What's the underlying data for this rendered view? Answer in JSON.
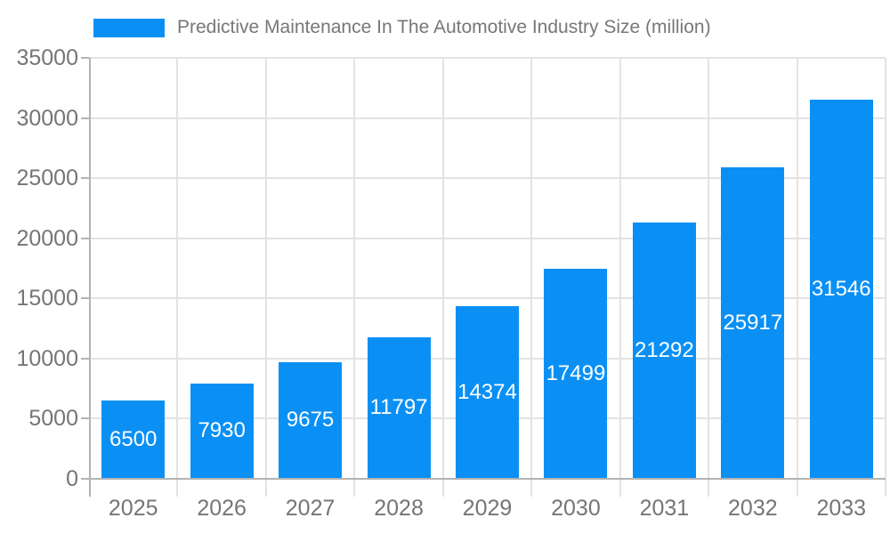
{
  "chart_data": {
    "type": "bar",
    "title": "Predictive Maintenance In The Automotive Industry Size (million)",
    "categories": [
      "2025",
      "2026",
      "2027",
      "2028",
      "2029",
      "2030",
      "2031",
      "2032",
      "2033"
    ],
    "values": [
      6500,
      7930,
      9675,
      11797,
      14374,
      17499,
      21292,
      25917,
      31546
    ],
    "bar_labels": [
      "6500",
      "7930",
      "9675",
      "11797",
      "14374",
      "17499",
      "21292",
      "25917",
      "31546"
    ],
    "xlabel": "",
    "ylabel": "",
    "ylim": [
      0,
      35000
    ],
    "yticks": [
      0,
      5000,
      10000,
      15000,
      20000,
      25000,
      30000,
      35000
    ],
    "ytick_labels": [
      "0",
      "5000",
      "10000",
      "15000",
      "20000",
      "25000",
      "30000",
      "35000"
    ],
    "grid": true,
    "legend": {
      "label": "Predictive Maintenance In The Automotive Industry Size (million)",
      "position": "top-left"
    },
    "colors": {
      "bar": "#0a90f5",
      "grid_line": "#e3e3e3",
      "axis_line": "#b3b3b3",
      "tick_text": "#757575",
      "title_text": "#777777",
      "bar_label_text": "#ffffff",
      "background": "#ffffff"
    }
  }
}
